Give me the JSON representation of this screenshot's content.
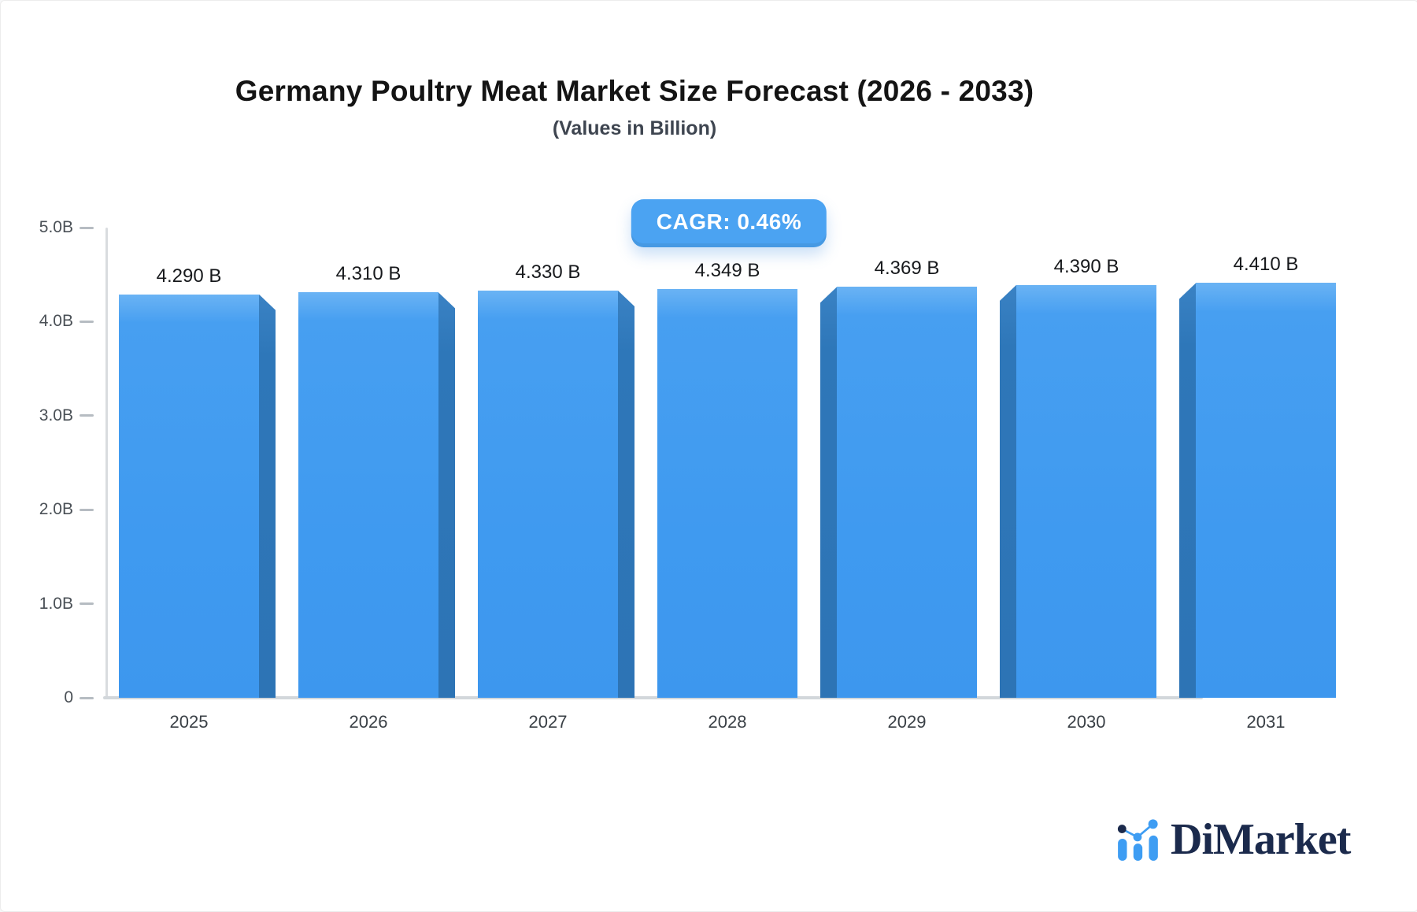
{
  "header": {
    "title": "Germany Poultry Meat Market Size Forecast (2026 - 2033)",
    "subtitle": "(Values in Billion)"
  },
  "cagr": {
    "label": "CAGR: 0.46%"
  },
  "chart_data": {
    "type": "bar",
    "title": "Germany Poultry Meat Market Size Forecast (2026 - 2033)",
    "subtitle": "(Values in Billion)",
    "categories": [
      "2025",
      "2026",
      "2027",
      "2028",
      "2029",
      "2030",
      "2031"
    ],
    "values": [
      4.29,
      4.31,
      4.33,
      4.349,
      4.369,
      4.39,
      4.41
    ],
    "value_labels": [
      "4.290 B",
      "4.310 B",
      "4.330 B",
      "4.349 B",
      "4.369 B",
      "4.390 B",
      "4.410 B"
    ],
    "annotation": "CAGR: 0.46%",
    "xlabel": "",
    "ylabel": "",
    "ylim": [
      0,
      5.0
    ],
    "y_ticks": [
      {
        "value": 5.0,
        "label": "5.0B"
      },
      {
        "value": 4.0,
        "label": "4.0B"
      },
      {
        "value": 3.0,
        "label": "3.0B"
      },
      {
        "value": 2.0,
        "label": "2.0B"
      },
      {
        "value": 1.0,
        "label": "1.0B"
      },
      {
        "value": 0,
        "label": "0"
      }
    ],
    "grid": false,
    "legend": false,
    "style": "3d-perspective-bars"
  },
  "colors": {
    "bar": "#3F9AF0",
    "bar_side": "#2E77B9",
    "badge_bg": "#4BA3F2",
    "badge_text": "#FFFFFF",
    "axis": "#D5D9DE",
    "tick": "#B6BCC2",
    "tick_label": "#4A5056",
    "title": "#141414",
    "brand_navy": "#1B2A4C",
    "brand_blue": "#3E9DF3"
  },
  "brand": {
    "wordmark": "DiMarket",
    "icon": "bar-chart-logo-icon"
  }
}
